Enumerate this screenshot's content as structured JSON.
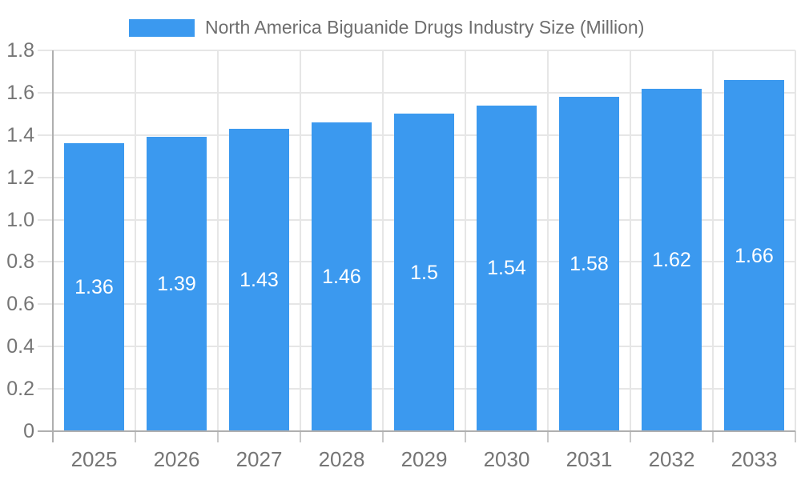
{
  "legend": {
    "label": "North America Biguanide Drugs Industry Size (Million)"
  },
  "chart_data": {
    "type": "bar",
    "title": "North America Biguanide Drugs Industry Size (Million)",
    "categories": [
      "2025",
      "2026",
      "2027",
      "2028",
      "2029",
      "2030",
      "2031",
      "2032",
      "2033"
    ],
    "values": [
      1.36,
      1.39,
      1.43,
      1.46,
      1.5,
      1.54,
      1.58,
      1.62,
      1.66
    ],
    "bar_labels": [
      "1.36",
      "1.39",
      "1.43",
      "1.46",
      "1.5",
      "1.54",
      "1.58",
      "1.62",
      "1.66"
    ],
    "xlabel": "",
    "ylabel": "",
    "ylim": [
      0,
      1.8
    ],
    "ytick_step": 0.2,
    "ytick_labels": [
      "0",
      "0.2",
      "0.4",
      "0.6",
      "0.8",
      "1.0",
      "1.2",
      "1.4",
      "1.6",
      "1.8"
    ],
    "grid": true,
    "legend_position": "top-center",
    "value_labels_inside_bars": true
  },
  "colors": {
    "bg": "#FFFFFF",
    "bar": "#3B99EF",
    "grid": "#E6E6E6",
    "axis": "#AFAFAF",
    "tick": "#C9C9C9",
    "tick_text": "#757575",
    "legend_text": "#6E6E6E",
    "bar_label": "#FFFFFF"
  }
}
